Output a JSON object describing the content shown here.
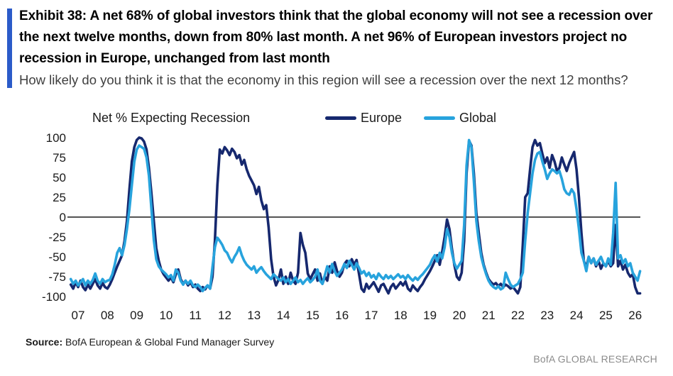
{
  "header": {
    "exhibit_title": "Exhibit 38: A net 68% of global investors think that the global economy will not see a recession over the next twelve months, down from 80% last month. A net 96% of European investors project no recession in Europe, unchanged from last month",
    "question": "How likely do you think it is that the economy in this region will see a recession over the next 12 months?"
  },
  "footer": {
    "source_label": "Source:",
    "source_text": " BofA European & Global Fund Manager Survey",
    "brand": "BofA GLOBAL RESEARCH"
  },
  "colors": {
    "accent_bar": "#2b5bc9",
    "europe_line": "#16286e",
    "global_line": "#27a3dd",
    "zero_line": "#1c1c1c"
  },
  "chart_data": {
    "type": "line",
    "title": "Net % Expecting Recession",
    "xlabel": "",
    "ylabel": "Net % Expecting Recession",
    "ylim": [
      -100,
      100
    ],
    "y_ticks": [
      100,
      75,
      50,
      25,
      0,
      -25,
      -50,
      -75,
      -100
    ],
    "x_tick_labels": [
      "07",
      "08",
      "09",
      "10",
      "11",
      "12",
      "13",
      "14",
      "15",
      "16",
      "17",
      "18",
      "19",
      "20",
      "21",
      "22",
      "23",
      "24",
      "25",
      "26"
    ],
    "x_tick_years": [
      2007,
      2008,
      2009,
      2010,
      2011,
      2012,
      2013,
      2014,
      2015,
      2016,
      2017,
      2018,
      2019,
      2020,
      2021,
      2022,
      2023,
      2024,
      2025,
      2026
    ],
    "x_start": 2006.75,
    "x_step": 0.08333,
    "grid": false,
    "zero_line": true,
    "legend_position": "top",
    "series": [
      {
        "name": "Europe",
        "color": "#16286e",
        "values": [
          -85,
          -90,
          -82,
          -88,
          -80,
          -88,
          -92,
          -85,
          -90,
          -84,
          -78,
          -86,
          -90,
          -83,
          -88,
          -90,
          -85,
          -78,
          -70,
          -62,
          -55,
          -48,
          -30,
          -5,
          35,
          70,
          88,
          97,
          100,
          99,
          95,
          85,
          62,
          30,
          -5,
          -39,
          -55,
          -66,
          -72,
          -76,
          -80,
          -76,
          -82,
          -72,
          -66,
          -78,
          -84,
          -80,
          -86,
          -82,
          -88,
          -85,
          -90,
          -93,
          -88,
          -91,
          -86,
          -90,
          -75,
          -30,
          40,
          85,
          80,
          88,
          84,
          78,
          86,
          82,
          74,
          78,
          66,
          72,
          60,
          52,
          46,
          40,
          29,
          38,
          21,
          10,
          15,
          -13,
          -53,
          -75,
          -86,
          -79,
          -66,
          -84,
          -75,
          -84,
          -70,
          -80,
          -84,
          -70,
          -20,
          -35,
          -45,
          -71,
          -78,
          -72,
          -66,
          -80,
          -71,
          -84,
          -75,
          -80,
          -62,
          -70,
          -57,
          -68,
          -75,
          -70,
          -59,
          -55,
          -62,
          -53,
          -60,
          -54,
          -72,
          -90,
          -94,
          -84,
          -90,
          -86,
          -82,
          -88,
          -94,
          -86,
          -84,
          -90,
          -96,
          -88,
          -84,
          -90,
          -86,
          -82,
          -86,
          -81,
          -90,
          -93,
          -86,
          -90,
          -93,
          -88,
          -84,
          -78,
          -73,
          -68,
          -62,
          -55,
          -48,
          -60,
          -44,
          -25,
          -3,
          -15,
          -40,
          -60,
          -75,
          -79,
          -70,
          -30,
          55,
          96,
          90,
          55,
          5,
          -20,
          -45,
          -60,
          -70,
          -78,
          -82,
          -85,
          -83,
          -87,
          -84,
          -88,
          -85,
          -87,
          -90,
          -88,
          -92,
          -96,
          -88,
          -35,
          25,
          30,
          60,
          88,
          97,
          90,
          93,
          80,
          68,
          75,
          62,
          78,
          70,
          58,
          62,
          75,
          66,
          58,
          68,
          75,
          82,
          60,
          25,
          -20,
          -55,
          -63,
          -50,
          -58,
          -52,
          -62,
          -55,
          -65,
          -58,
          -62,
          -55,
          -62,
          -58,
          -10,
          -62,
          -55,
          -66,
          -60,
          -70,
          -75,
          -72,
          -88,
          -96,
          -96
        ]
      },
      {
        "name": "Global",
        "color": "#27a3dd",
        "values": [
          -78,
          -84,
          -80,
          -86,
          -82,
          -78,
          -86,
          -80,
          -84,
          -79,
          -71,
          -80,
          -84,
          -78,
          -82,
          -80,
          -79,
          -72,
          -60,
          -45,
          -39,
          -48,
          -35,
          -15,
          10,
          40,
          70,
          85,
          90,
          88,
          86,
          75,
          52,
          10,
          -29,
          -53,
          -62,
          -66,
          -69,
          -72,
          -76,
          -73,
          -80,
          -66,
          -70,
          -80,
          -85,
          -80,
          -84,
          -80,
          -86,
          -88,
          -85,
          -88,
          -93,
          -89,
          -86,
          -90,
          -63,
          -38,
          -26,
          -30,
          -35,
          -42,
          -45,
          -52,
          -57,
          -50,
          -45,
          -38,
          -48,
          -55,
          -60,
          -63,
          -66,
          -62,
          -70,
          -66,
          -63,
          -68,
          -72,
          -75,
          -78,
          -72,
          -75,
          -78,
          -80,
          -76,
          -82,
          -78,
          -84,
          -80,
          -76,
          -82,
          -79,
          -84,
          -80,
          -77,
          -82,
          -79,
          -75,
          -66,
          -80,
          -84,
          -73,
          -62,
          -70,
          -59,
          -68,
          -74,
          -70,
          -66,
          -59,
          -64,
          -55,
          -60,
          -66,
          -58,
          -64,
          -71,
          -68,
          -74,
          -70,
          -76,
          -73,
          -78,
          -71,
          -75,
          -78,
          -73,
          -77,
          -74,
          -78,
          -75,
          -72,
          -76,
          -74,
          -78,
          -73,
          -77,
          -80,
          -76,
          -79,
          -75,
          -72,
          -68,
          -64,
          -60,
          -53,
          -48,
          -56,
          -45,
          -52,
          -38,
          -15,
          -25,
          -45,
          -58,
          -65,
          -60,
          -55,
          -10,
          65,
          97,
          88,
          45,
          -5,
          -30,
          -50,
          -62,
          -72,
          -80,
          -85,
          -88,
          -90,
          -87,
          -91,
          -89,
          -70,
          -78,
          -85,
          -88,
          -86,
          -84,
          -78,
          -70,
          -30,
          5,
          30,
          55,
          72,
          80,
          82,
          70,
          60,
          48,
          55,
          60,
          58,
          55,
          58,
          48,
          35,
          30,
          28,
          35,
          30,
          10,
          -15,
          -45,
          -55,
          -68,
          -50,
          -58,
          -52,
          -60,
          -55,
          -50,
          -58,
          -62,
          -52,
          -60,
          -20,
          43,
          -52,
          -48,
          -58,
          -53,
          -62,
          -58,
          -70,
          -75,
          -80,
          -68
        ]
      }
    ]
  }
}
